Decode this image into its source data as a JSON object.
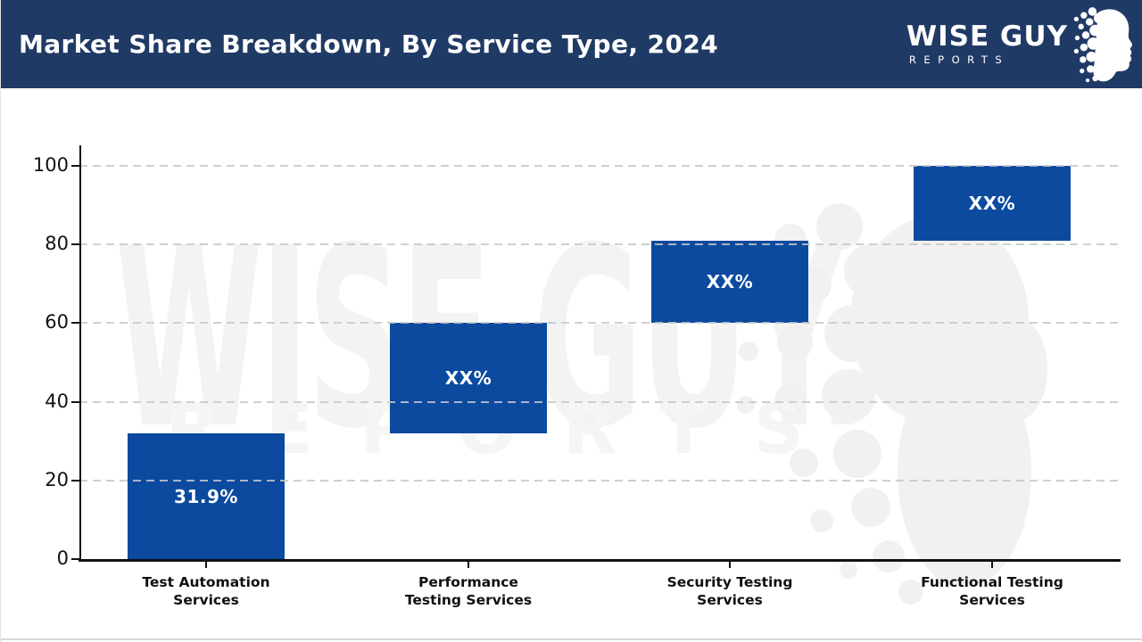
{
  "header": {
    "title": "Market Share Breakdown, By Service Type, 2024",
    "logo": {
      "line1": "WISE GUY",
      "line2": "REPORTS"
    }
  },
  "watermark": {
    "line1": "WISE GUY.",
    "line2": "REPORTS"
  },
  "chart_data": {
    "type": "bar",
    "subtype": "floating-waterfall",
    "title": "Market Share Breakdown, By Service Type, 2024",
    "categories": [
      "Test Automation\nServices",
      "Performance\nTesting Services",
      "Security Testing\nServices",
      "Functional Testing\nServices"
    ],
    "segments": [
      {
        "start": 0,
        "end": 31.9,
        "label": "31.9%"
      },
      {
        "start": 31.9,
        "end": 60,
        "label": "XX%"
      },
      {
        "start": 60,
        "end": 81,
        "label": "XX%"
      },
      {
        "start": 81,
        "end": 100,
        "label": "XX%"
      }
    ],
    "yticks": [
      0,
      20,
      40,
      60,
      80,
      100
    ],
    "ylim": [
      0,
      105
    ],
    "grid": {
      "axis": "y",
      "style": "dashed",
      "color": "#D8D8D8"
    },
    "bar_color": "#0B4A9F",
    "bar_label_color": "#FFFFFF",
    "axis_color": "#111111",
    "legend": "none"
  }
}
